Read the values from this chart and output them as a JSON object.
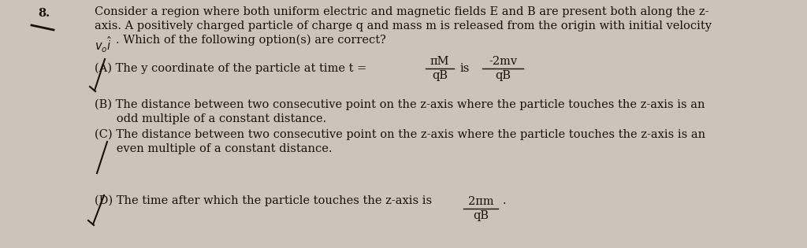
{
  "background_color": "#ccc4bb",
  "text_color": "#1a1208",
  "fs": 10.5,
  "q_num": "8.",
  "line1": "Consider a region where both uniform electric and magnetic fields E and B are present both along the z-",
  "line2": "axis. A positively charged particle of charge q and mass m is released from the origin with initial velocity",
  "line3_post": ". Which of the following option(s) are correct?",
  "optA_text": "(A) The y coordinate of the particle at time t =",
  "optA_is": "is",
  "optA_num1": "πM",
  "optA_den1": "qB",
  "optA_num2": "-2mv",
  "optA_den2": "qB",
  "optB1": "(B) The distance between two consecutive point on the z-axis where the particle touches the z-axis is an",
  "optB2": "      odd multiple of a constant distance.",
  "optC1": "(C) The distance between two consecutive point on the z-axis where the particle touches the z-axis is an",
  "optC2": "      even multiple of a constant distance.",
  "optD_pre": "(D) The time after which the particle touches the z-axis is",
  "optD_num": "2πm",
  "optD_den": "qB",
  "optD_post": "."
}
